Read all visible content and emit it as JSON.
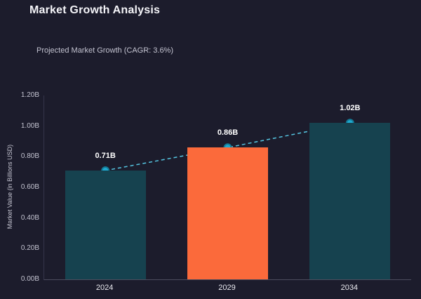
{
  "header": {
    "title": "Market Growth Analysis",
    "subtitle": "Projected Market Growth (CAGR: 3.6%)"
  },
  "colors": {
    "background": "#1c1c2c",
    "bar_teal": "#16424f",
    "bar_orange": "#fb6a3b",
    "trend_line": "#56c7e3",
    "marker_fill": "#1fa9cf",
    "marker_stroke": "#157a96",
    "axis_line": "#4d4d5e",
    "muted_text": "#c3c3d0"
  },
  "chart_data": {
    "type": "bar",
    "title": "Market Growth Analysis",
    "subtitle": "Projected Market Growth (CAGR: 3.6%)",
    "categories": [
      "2024",
      "2029",
      "2034"
    ],
    "values": [
      0.71,
      0.86,
      1.02
    ],
    "data_labels": [
      "0.71B",
      "0.86B",
      "1.02B"
    ],
    "bar_colors": [
      "#16424f",
      "#fb6a3b",
      "#16424f"
    ],
    "trend_line": {
      "style": "dashed",
      "color": "#56c7e3",
      "marker_color": "#1fa9cf",
      "marker_stroke": "#157a96"
    },
    "xlabel": "",
    "ylabel": "Market Value (in Billions USD)",
    "ylim": [
      0,
      1.2
    ],
    "yticks": [
      "0.00B",
      "0.20B",
      "0.40B",
      "0.60B",
      "0.80B",
      "1.00B",
      "1.20B"
    ],
    "ytick_values": [
      0,
      0.2,
      0.4,
      0.6,
      0.8,
      1.0,
      1.2
    ],
    "grid": false,
    "legend": false
  }
}
